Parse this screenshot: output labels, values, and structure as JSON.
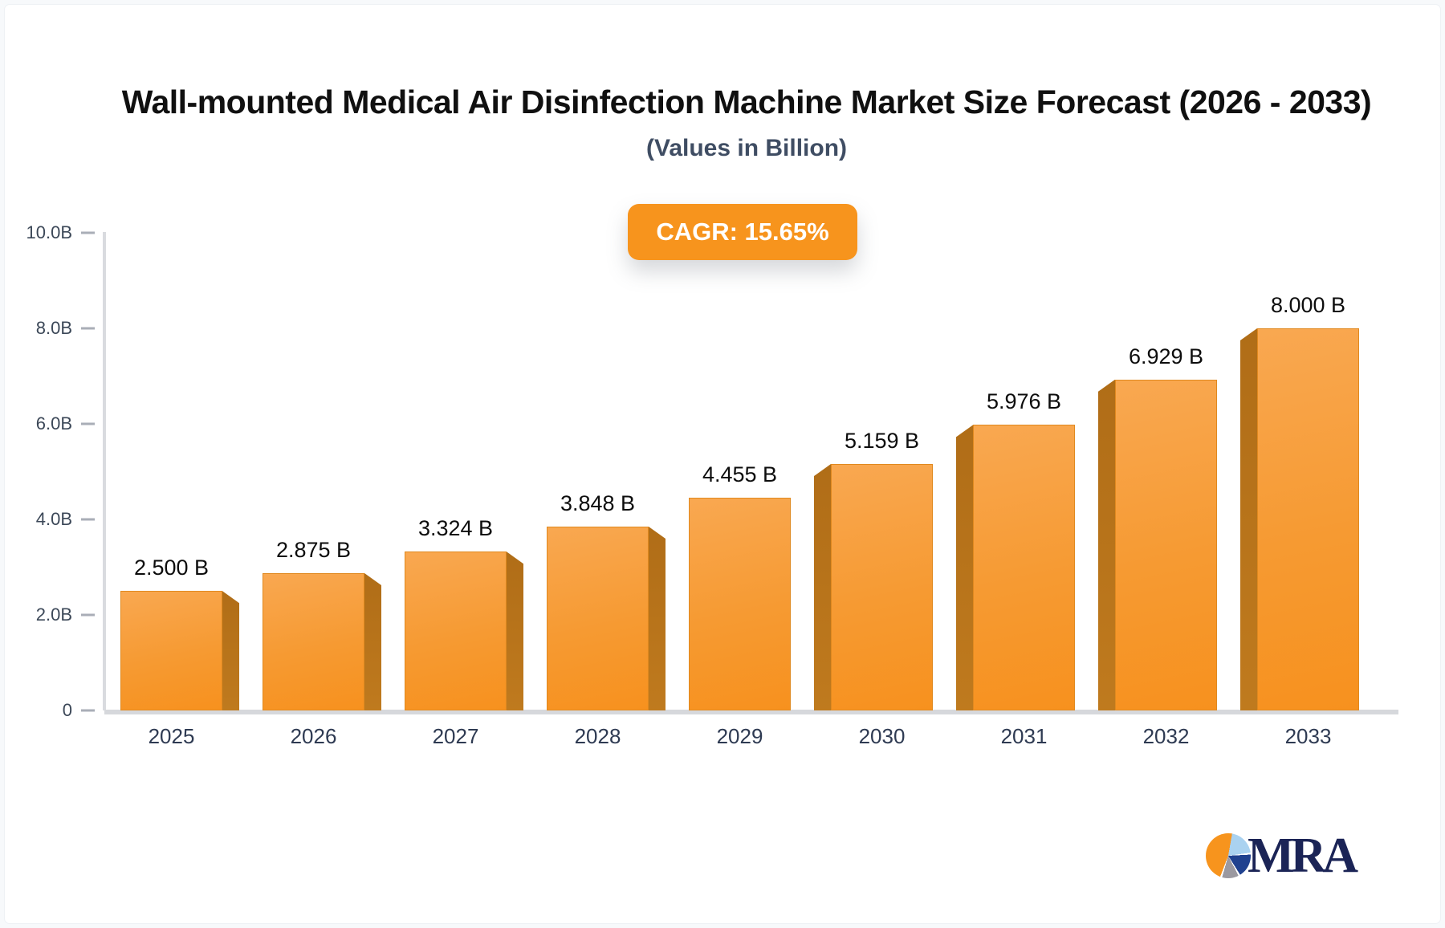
{
  "header": {
    "title": "Wall-mounted Medical Air Disinfection Machine Market Size Forecast (2026 - 2033)",
    "subtitle": "(Values in Billion)",
    "cagr_badge": "CAGR: 15.65%"
  },
  "chart_data": {
    "type": "bar",
    "title": "Wall-mounted Medical Air Disinfection Machine Market Size Forecast (2026 - 2033)",
    "subtitle": "(Values in Billion)",
    "annotation": "CAGR: 15.65%",
    "categories": [
      "2025",
      "2026",
      "2027",
      "2028",
      "2029",
      "2030",
      "2031",
      "2032",
      "2033"
    ],
    "values": [
      2.5,
      2.875,
      3.324,
      3.848,
      4.455,
      5.159,
      5.976,
      6.929,
      8.0
    ],
    "value_labels": [
      "2.500 B",
      "2.875 B",
      "3.324 B",
      "3.848 B",
      "4.455 B",
      "5.159 B",
      "5.976 B",
      "6.929 B",
      "8.000 B"
    ],
    "xlabel": "",
    "ylabel": "",
    "ylim": [
      0,
      10
    ],
    "y_ticks": [
      {
        "label": "10.0B",
        "value": 10
      },
      {
        "label": "8.0B",
        "value": 8
      },
      {
        "label": "6.0B",
        "value": 6
      },
      {
        "label": "4.0B",
        "value": 4
      },
      {
        "label": "2.0B",
        "value": 2
      },
      {
        "label": "0",
        "value": 0
      }
    ],
    "grid": false,
    "legend": "none",
    "bar_style": "3d-pseudo",
    "colors": {
      "bar_face_top": "#f9a851",
      "bar_face_bottom": "#f7911e",
      "bar_side": "#b9741f",
      "badge_background": "#f7941d",
      "badge_text": "#ffffff",
      "title_text": "#101010",
      "subtitle_text": "#3f4d63",
      "axis_text": "#3c4858",
      "category_text": "#2e3a52",
      "axis_line": "#d9dbdf",
      "logo_navy": "#1b2456"
    }
  },
  "footer": {
    "logo_text": "MRA"
  }
}
